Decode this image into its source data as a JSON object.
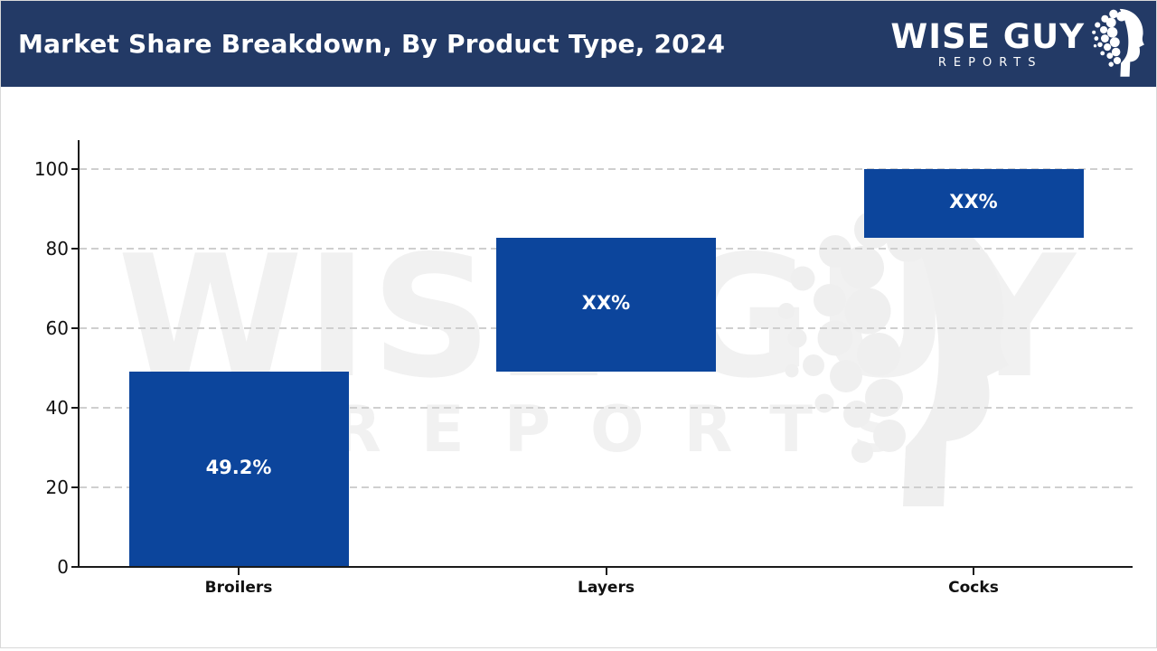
{
  "header": {
    "title": "Market Share Breakdown, By Product Type, 2024",
    "background": "#233a66",
    "logo": {
      "line1": "WISE GUY",
      "line2": "REPORTS"
    }
  },
  "watermark": {
    "line1": "WISE GUY",
    "line2": "REPORTS"
  },
  "chart_data": {
    "type": "bar",
    "subtype": "floating-waterfall-percentage",
    "title": "Market Share Breakdown, By Product Type, 2024",
    "categories": [
      "Broilers",
      "Layers",
      "Cocks"
    ],
    "segments": [
      {
        "category": "Broilers",
        "start": 0,
        "end": 49.2,
        "label": "49.2%"
      },
      {
        "category": "Layers",
        "start": 49.2,
        "end": 82.7,
        "label": "XX%"
      },
      {
        "category": "Cocks",
        "start": 82.7,
        "end": 100,
        "label": "XX%"
      }
    ],
    "xlabel": "",
    "ylabel": "",
    "ylim": [
      0,
      100
    ],
    "yticks": [
      0,
      20,
      40,
      60,
      80,
      100
    ],
    "grid": "horizontal-dashed",
    "legend": "none",
    "bar_color": "#0c459c",
    "bar_label_color": "#ffffff",
    "axis_color": "#1a1a1a",
    "gridline_color": "#cfcfcf"
  }
}
